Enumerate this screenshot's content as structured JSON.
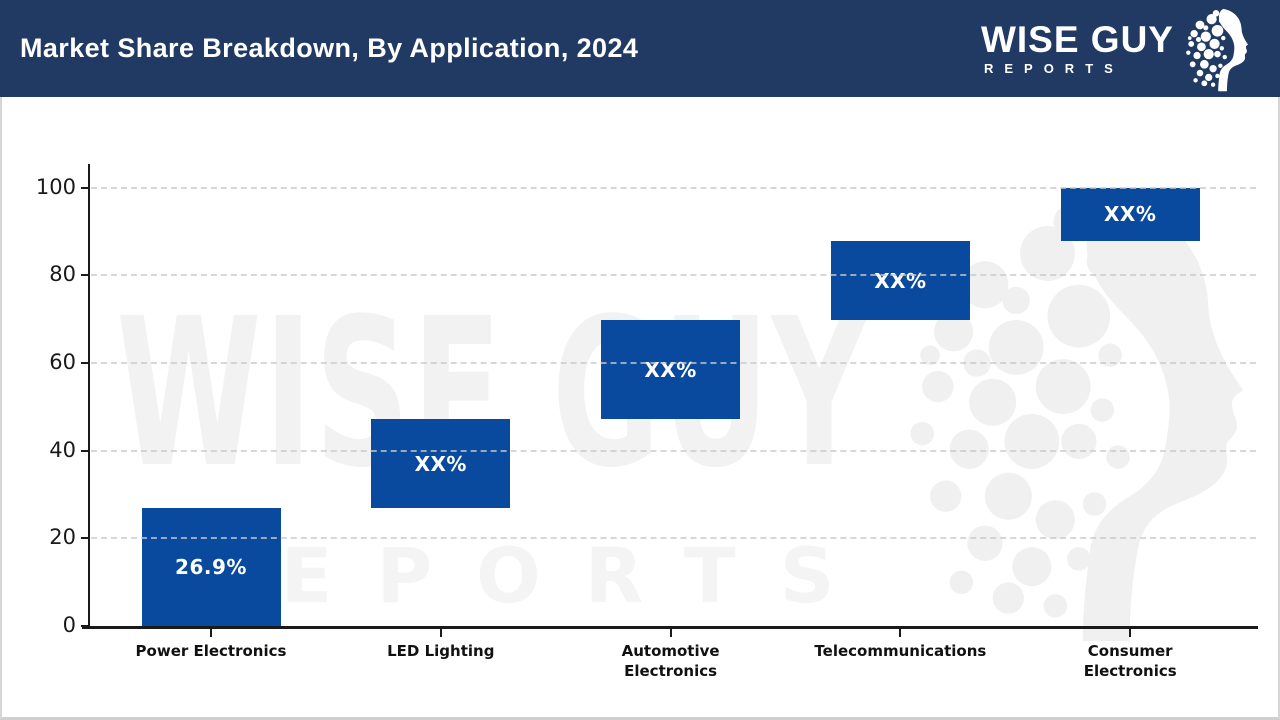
{
  "header": {
    "title": "Market Share Breakdown, By Application, 2024",
    "logo": {
      "wordmark": "WISE GUY",
      "subtitle": "REPORTS"
    }
  },
  "watermark": {
    "wordmark": "WISE GUY",
    "subtitle": "REPORTS"
  },
  "colors": {
    "header_bg": "#203a64",
    "title_text": "#ffffff",
    "bar": "#0a4a9e",
    "bar_label": "#ffffff",
    "grid": "#cccccc",
    "axis": "#1a1a1a",
    "watermark": "#f2f2f2"
  },
  "chart_data": {
    "type": "bar",
    "subtype": "waterfall",
    "title": "Market Share Breakdown, By Application, 2024",
    "xlabel": "",
    "ylabel": "",
    "ylim": [
      0,
      105
    ],
    "yticks": [
      0,
      20,
      40,
      60,
      80,
      100
    ],
    "grid": "horizontal-dashed",
    "legend": null,
    "categories": [
      "Power Electronics",
      "LED Lighting",
      "Automotive Electronics",
      "Telecommunications",
      "Consumer Electronics"
    ],
    "bars": [
      {
        "category": "Power Electronics",
        "label_lines": [
          "Power Electronics"
        ],
        "start": 0,
        "end": 26.9,
        "value_label": "26.9%"
      },
      {
        "category": "LED Lighting",
        "label_lines": [
          "LED Lighting"
        ],
        "start": 26.9,
        "end": 47.2,
        "value_label": "XX%"
      },
      {
        "category": "Automotive Electronics",
        "label_lines": [
          "Automotive",
          "Electronics"
        ],
        "start": 47.2,
        "end": 69.8,
        "value_label": "XX%"
      },
      {
        "category": "Telecommunications",
        "label_lines": [
          "Telecommunications"
        ],
        "start": 69.8,
        "end": 87.8,
        "value_label": "XX%"
      },
      {
        "category": "Consumer Electronics",
        "label_lines": [
          "Consumer",
          "Electronics"
        ],
        "start": 87.8,
        "end": 100,
        "value_label": "XX%"
      }
    ]
  }
}
